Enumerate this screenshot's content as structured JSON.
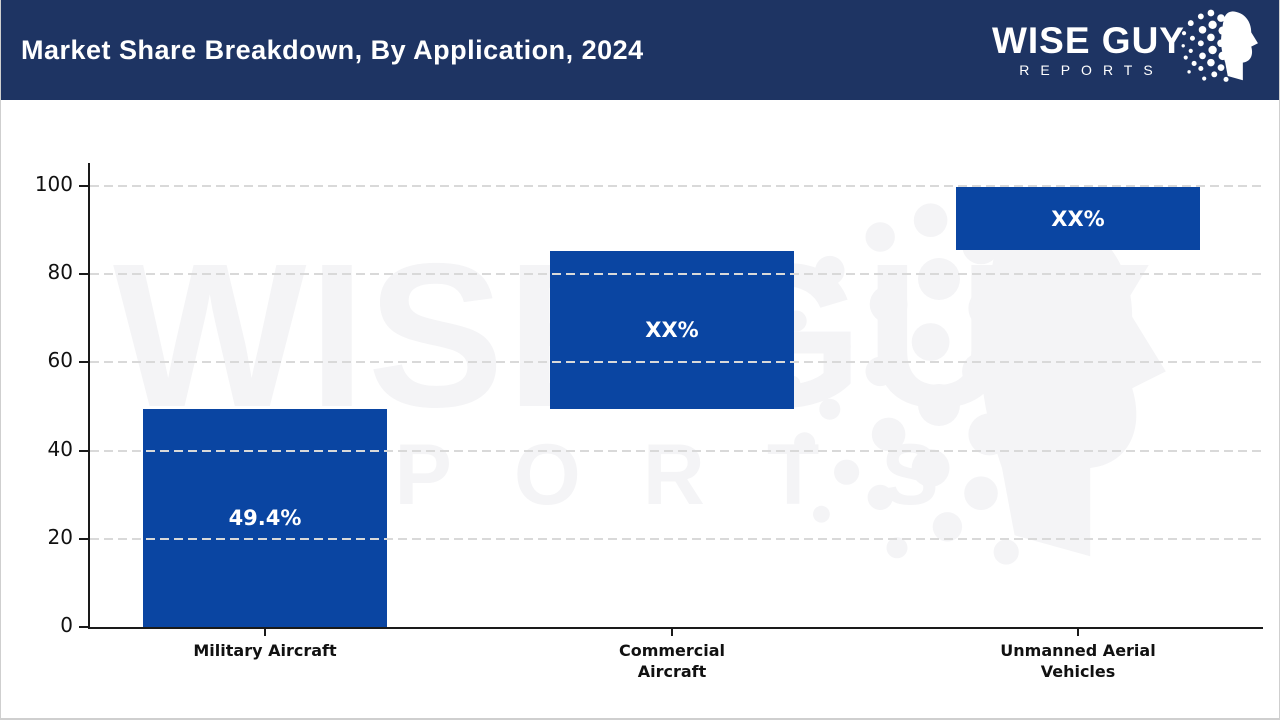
{
  "header": {
    "title": "Market Share Breakdown, By Application, 2024",
    "logo": {
      "name": "WISE GUY",
      "sub": "REPORTS",
      "icon": "dotted-head-icon"
    }
  },
  "watermark": {
    "name": "WISE GUY",
    "sub": "REPORTS",
    "icon": "dotted-head-icon"
  },
  "chart_data": {
    "type": "bar",
    "subtype": "stepped-waterfall",
    "title": "Market Share Breakdown, By Application, 2024",
    "categories": [
      "Military Aircraft",
      "Commercial Aircraft",
      "Unmanned Aerial Vehicles"
    ],
    "segments": [
      {
        "category": "Military Aircraft",
        "display": "Military Aircraft",
        "start": 0,
        "end": 49.4,
        "label": "49.4%"
      },
      {
        "category": "Commercial Aircraft",
        "display": "Commercial\nAircraft",
        "start": 49.4,
        "end": 85.2,
        "label": "XX%"
      },
      {
        "category": "Unmanned Aerial Vehicles",
        "display": "Unmanned Aerial\nVehicles",
        "start": 85.4,
        "end": 99.7,
        "label": "XX%"
      }
    ],
    "xlabel": "",
    "ylabel": "",
    "ylim": [
      0,
      100
    ],
    "yticks": [
      0,
      20,
      40,
      60,
      80,
      100
    ],
    "grid": "horizontal-dashed",
    "legend": "none",
    "colors": {
      "bar": "#0a45a2",
      "bar_label": "#ffffff",
      "header_bg": "#1e3463",
      "grid": "#d9d9d9",
      "axis": "#1a1a1a",
      "text": "#111111",
      "watermark": "#f4f4f6"
    }
  }
}
